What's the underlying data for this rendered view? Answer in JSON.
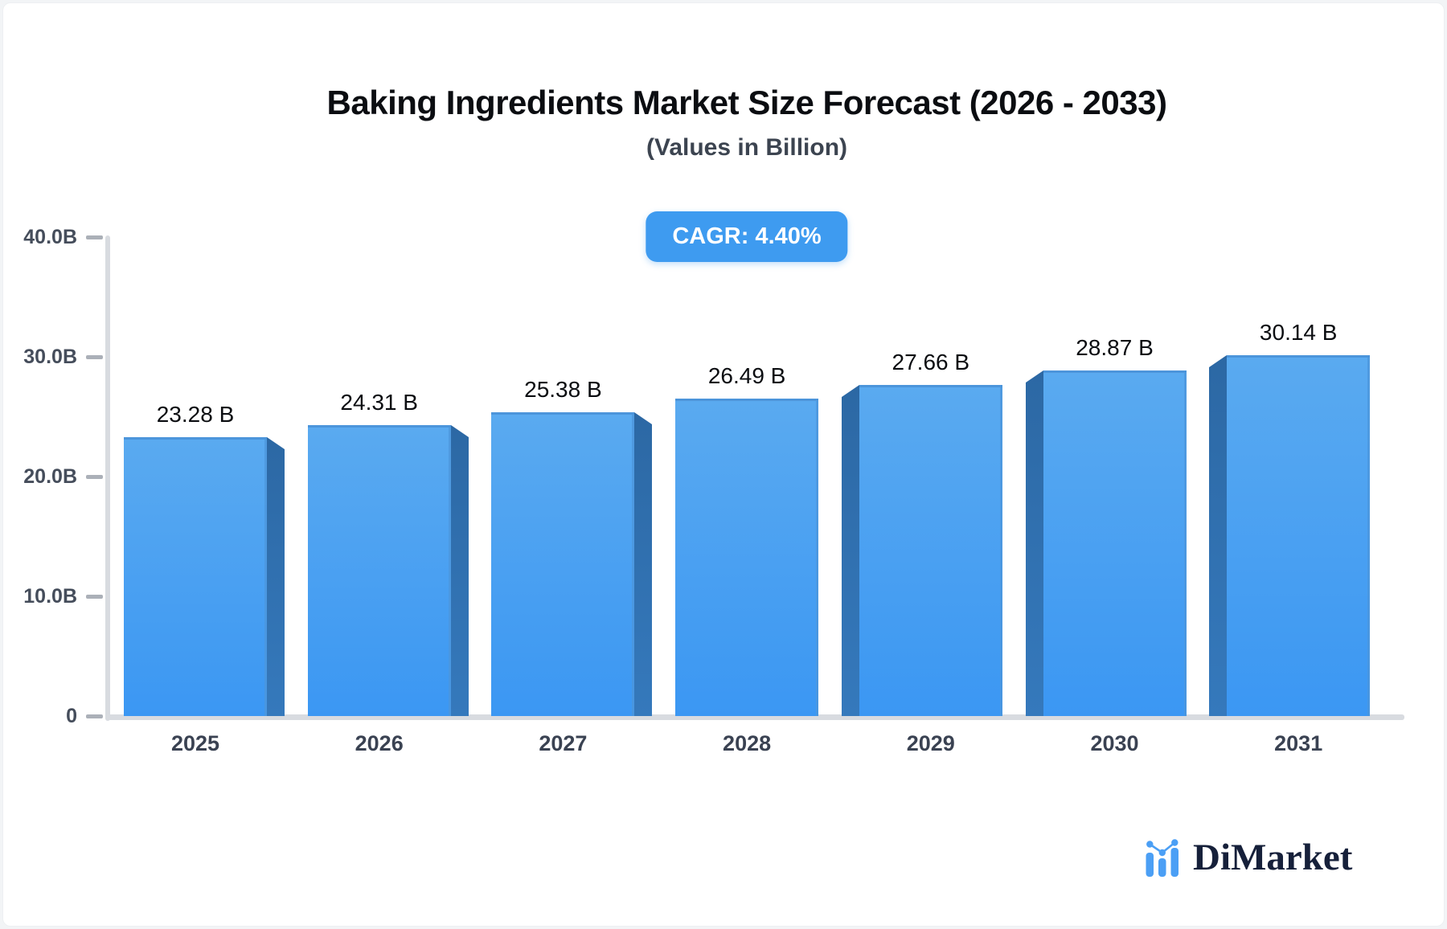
{
  "header": {
    "title": "Baking Ingredients Market Size Forecast (2026 - 2033)",
    "subtitle": "(Values in Billion)"
  },
  "badge": {
    "label": "CAGR: 4.40%"
  },
  "chart_data": {
    "type": "bar",
    "title": "Baking Ingredients Market Size Forecast (2026 - 2033)",
    "subtitle": "(Values in Billion)",
    "categories": [
      "2025",
      "2026",
      "2027",
      "2028",
      "2029",
      "2030",
      "2031"
    ],
    "values": [
      23.28,
      24.31,
      25.38,
      26.49,
      27.66,
      28.87,
      30.14
    ],
    "value_labels": [
      "23.28 B",
      "24.31 B",
      "25.38 B",
      "26.49 B",
      "27.66 B",
      "28.87 B",
      "30.14 B"
    ],
    "xlabel": "",
    "ylabel": "",
    "ylim": [
      0,
      40
    ],
    "y_ticks": [
      {
        "value": 40,
        "label": "40.0B"
      },
      {
        "value": 30,
        "label": "30.0B"
      },
      {
        "value": 20,
        "label": "20.0B"
      },
      {
        "value": 10,
        "label": "10.0B"
      },
      {
        "value": 0,
        "label": "0"
      }
    ],
    "grid": false,
    "legend": "none",
    "style": "pseudo-3d-bars, side faces angle away from center bar"
  },
  "footer": {
    "logo_text": "DiMarket"
  },
  "colors": {
    "accent_blue": "#3E9BF0",
    "bar_front_top": "#5AAAF0",
    "bar_front_bottom": "#3B97F3",
    "bar_side_top": "#2C68A4",
    "bar_side_bottom": "#3579BC",
    "bar_edge": "#4C95DB",
    "axis_line": "#D8DBE0",
    "tick_dash": "#9CA2AB",
    "axis_label": "#454D5B",
    "category_label": "#3A4252",
    "value_label": "#0B0D11",
    "title": "#0B0D11",
    "subtitle": "#3C4450",
    "logo_navy": "#16203A",
    "logo_blue": "#4B9FF5",
    "page_bg": "#F2F4F6",
    "card_bg": "#FFFFFF"
  }
}
